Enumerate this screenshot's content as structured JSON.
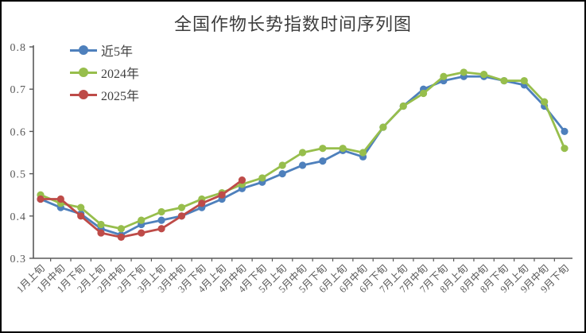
{
  "window": {
    "background": "#ffffff",
    "frame_color": "#000000",
    "title_color": "#3d3d3d",
    "axis_color": "#595959",
    "tick_label_color": "#595959"
  },
  "chart_data": {
    "type": "line",
    "title": "全国作物长势指数时间序列图",
    "xlabel": "",
    "ylabel": "",
    "ylim": [
      0.3,
      0.8
    ],
    "ytick_step": 0.1,
    "ytick_labels": [
      "0.3",
      "0.4",
      "0.5",
      "0.6",
      "0.7",
      "0.8"
    ],
    "grid": false,
    "legend_position": "top-left",
    "categories": [
      "1月上旬",
      "1月中旬",
      "1月下旬",
      "2月上旬",
      "2月中旬",
      "2月下旬",
      "3月上旬",
      "3月中旬",
      "3月下旬",
      "4月上旬",
      "4月中旬",
      "4月下旬",
      "5月上旬",
      "5月中旬",
      "5月下旬",
      "6月上旬",
      "6月中旬",
      "6月下旬",
      "7月上旬",
      "7月中旬",
      "7月下旬",
      "8月上旬",
      "8月中旬",
      "8月下旬",
      "9月上旬",
      "9月中旬",
      "9月下旬"
    ],
    "series": [
      {
        "name": "近5年",
        "color": "#4E80BC",
        "values": [
          0.44,
          0.42,
          0.405,
          0.37,
          0.355,
          0.38,
          0.39,
          0.4,
          0.42,
          0.44,
          0.465,
          0.48,
          0.5,
          0.52,
          0.53,
          0.555,
          0.54,
          0.61,
          0.66,
          0.7,
          0.72,
          0.73,
          0.73,
          0.72,
          0.71,
          0.66,
          0.6
        ]
      },
      {
        "name": "2024年",
        "color": "#97BE4C",
        "values": [
          0.45,
          0.43,
          0.42,
          0.38,
          0.37,
          0.39,
          0.41,
          0.42,
          0.44,
          0.455,
          0.475,
          0.49,
          0.52,
          0.55,
          0.56,
          0.56,
          0.55,
          0.61,
          0.66,
          0.69,
          0.73,
          0.74,
          0.735,
          0.72,
          0.72,
          0.67,
          0.56
        ]
      },
      {
        "name": "2025年",
        "color": "#BE4B48",
        "values": [
          0.44,
          0.44,
          0.4,
          0.36,
          0.35,
          0.36,
          0.37,
          0.4,
          0.43,
          0.45,
          0.485
        ]
      }
    ]
  }
}
